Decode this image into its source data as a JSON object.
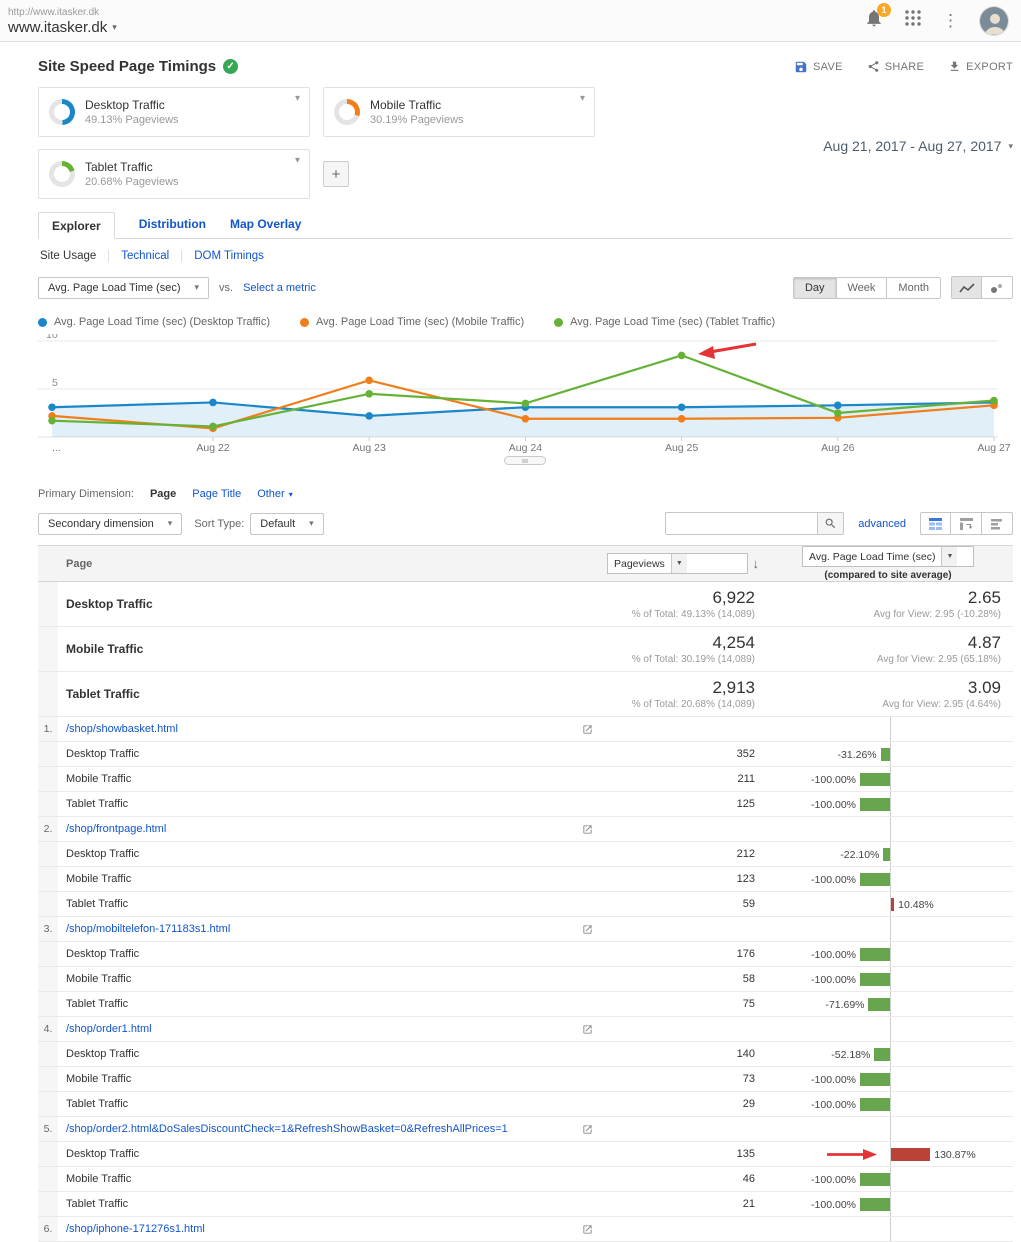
{
  "glyphs": {
    "caret_down": "▾",
    "select_arrow": "▼",
    "sort_desc": "↓",
    "plus": "+",
    "check": "✓",
    "dots_vertical": "⋮"
  },
  "topbar": {
    "url": "http://www.itasker.dk",
    "account": "www.itasker.dk",
    "notification_badge": "1"
  },
  "report": {
    "title": "Site Speed Page Timings",
    "save": "SAVE",
    "share": "SHARE",
    "export": "EXPORT",
    "date_range": "Aug 21, 2017 - Aug 27, 2017"
  },
  "segments": [
    {
      "name": "Desktop Traffic",
      "detail": "49.13% Pageviews",
      "pct": 49.13,
      "color": "#1a87c8"
    },
    {
      "name": "Mobile Traffic",
      "detail": "30.19% Pageviews",
      "pct": 30.19,
      "color": "#f07e1a"
    },
    {
      "name": "Tablet Traffic",
      "detail": "20.68% Pageviews",
      "pct": 20.68,
      "color": "#66b237"
    }
  ],
  "tabs": {
    "explorer": "Explorer",
    "distribution": "Distribution",
    "map_overlay": "Map Overlay"
  },
  "subtabs": {
    "site_usage": "Site Usage",
    "technical": "Technical",
    "dom_timings": "DOM Timings"
  },
  "metric_bar": {
    "metric_select": "Avg. Page Load Time (sec)",
    "vs": "vs.",
    "select_metric": "Select a metric",
    "granularity": [
      "Day",
      "Week",
      "Month"
    ],
    "active_granularity": "Day"
  },
  "chart_data": {
    "type": "line",
    "x": [
      "...",
      "Aug 22",
      "Aug 23",
      "Aug 24",
      "Aug 25",
      "Aug 26",
      "Aug 27"
    ],
    "ylim": [
      0,
      10
    ],
    "yticks": [
      5,
      10
    ],
    "legend_position": "top",
    "grid": true,
    "series": [
      {
        "name": "Avg. Page Load Time (sec) (Desktop Traffic)",
        "color": "#1a87c8",
        "area": true,
        "values": [
          3.1,
          3.6,
          2.2,
          3.1,
          3.1,
          3.3,
          3.6
        ]
      },
      {
        "name": "Avg. Page Load Time (sec) (Mobile Traffic)",
        "color": "#f07e1a",
        "area": false,
        "values": [
          2.2,
          0.9,
          5.9,
          1.9,
          1.9,
          2.0,
          3.3
        ]
      },
      {
        "name": "Avg. Page Load Time (sec) (Tablet Traffic)",
        "color": "#66b237",
        "area": false,
        "values": [
          1.7,
          1.1,
          4.5,
          3.5,
          8.5,
          2.5,
          3.8
        ]
      }
    ],
    "annotation": "red arrow pointing at Tablet Traffic peak on Aug 25"
  },
  "dimension_bar": {
    "label": "Primary Dimension:",
    "active": "Page",
    "links": [
      "Page Title",
      "Other"
    ]
  },
  "toolbar": {
    "secondary_dimension": "Secondary dimension",
    "sort_type_label": "Sort Type:",
    "sort_type_value": "Default",
    "advanced": "advanced",
    "search_value": ""
  },
  "table": {
    "headers": {
      "page": "Page",
      "pageviews": "Pageviews",
      "metric": "Avg. Page Load Time (sec)",
      "metric_note": "(compared to site average)"
    },
    "summary": [
      {
        "name": "Desktop Traffic",
        "pageviews": "6,922",
        "pageviews_note": "% of Total: 49.13% (14,089)",
        "value": "2.65",
        "value_note": "Avg for View: 2.95 (-10.28%)"
      },
      {
        "name": "Mobile Traffic",
        "pageviews": "4,254",
        "pageviews_note": "% of Total: 30.19% (14,089)",
        "value": "4.87",
        "value_note": "Avg for View: 2.95 (65.18%)"
      },
      {
        "name": "Tablet Traffic",
        "pageviews": "2,913",
        "pageviews_note": "% of Total: 20.68% (14,089)",
        "value": "3.09",
        "value_note": "Avg for View: 2.95 (4.64%)"
      }
    ],
    "bar_colors": {
      "faster": "#68a54f",
      "slower": "#b94337"
    },
    "rows": [
      {
        "index": "1.",
        "url": "/shop/showbasket.html",
        "segments": [
          {
            "name": "Desktop Traffic",
            "pageviews": "352",
            "pct": -31.26,
            "label": "-31.26%"
          },
          {
            "name": "Mobile Traffic",
            "pageviews": "211",
            "pct": -100,
            "label": "-100.00%"
          },
          {
            "name": "Tablet Traffic",
            "pageviews": "125",
            "pct": -100,
            "label": "-100.00%"
          }
        ]
      },
      {
        "index": "2.",
        "url": "/shop/frontpage.html",
        "segments": [
          {
            "name": "Desktop Traffic",
            "pageviews": "212",
            "pct": -22.1,
            "label": "-22.10%"
          },
          {
            "name": "Mobile Traffic",
            "pageviews": "123",
            "pct": -100,
            "label": "-100.00%"
          },
          {
            "name": "Tablet Traffic",
            "pageviews": "59",
            "pct": 10.48,
            "label": "10.48%"
          }
        ]
      },
      {
        "index": "3.",
        "url": "/shop/mobiltelefon-171183s1.html",
        "segments": [
          {
            "name": "Desktop Traffic",
            "pageviews": "176",
            "pct": -100,
            "label": "-100.00%"
          },
          {
            "name": "Mobile Traffic",
            "pageviews": "58",
            "pct": -100,
            "label": "-100.00%"
          },
          {
            "name": "Tablet Traffic",
            "pageviews": "75",
            "pct": -71.69,
            "label": "-71.69%"
          }
        ]
      },
      {
        "index": "4.",
        "url": "/shop/order1.html",
        "segments": [
          {
            "name": "Desktop Traffic",
            "pageviews": "140",
            "pct": -52.18,
            "label": "-52.18%"
          },
          {
            "name": "Mobile Traffic",
            "pageviews": "73",
            "pct": -100,
            "label": "-100.00%"
          },
          {
            "name": "Tablet Traffic",
            "pageviews": "29",
            "pct": -100,
            "label": "-100.00%"
          }
        ]
      },
      {
        "index": "5.",
        "url": "/shop/order2.html&DoSalesDiscountCheck=1&RefreshShowBasket=0&RefreshAllPrices=1",
        "segments": [
          {
            "name": "Desktop Traffic",
            "pageviews": "135",
            "pct": 130.87,
            "label": "130.87%",
            "arrow": true
          },
          {
            "name": "Mobile Traffic",
            "pageviews": "46",
            "pct": -100,
            "label": "-100.00%"
          },
          {
            "name": "Tablet Traffic",
            "pageviews": "21",
            "pct": -100,
            "label": "-100.00%"
          }
        ]
      },
      {
        "index": "6.",
        "url": "/shop/iphone-171276s1.html",
        "segments": []
      }
    ]
  }
}
